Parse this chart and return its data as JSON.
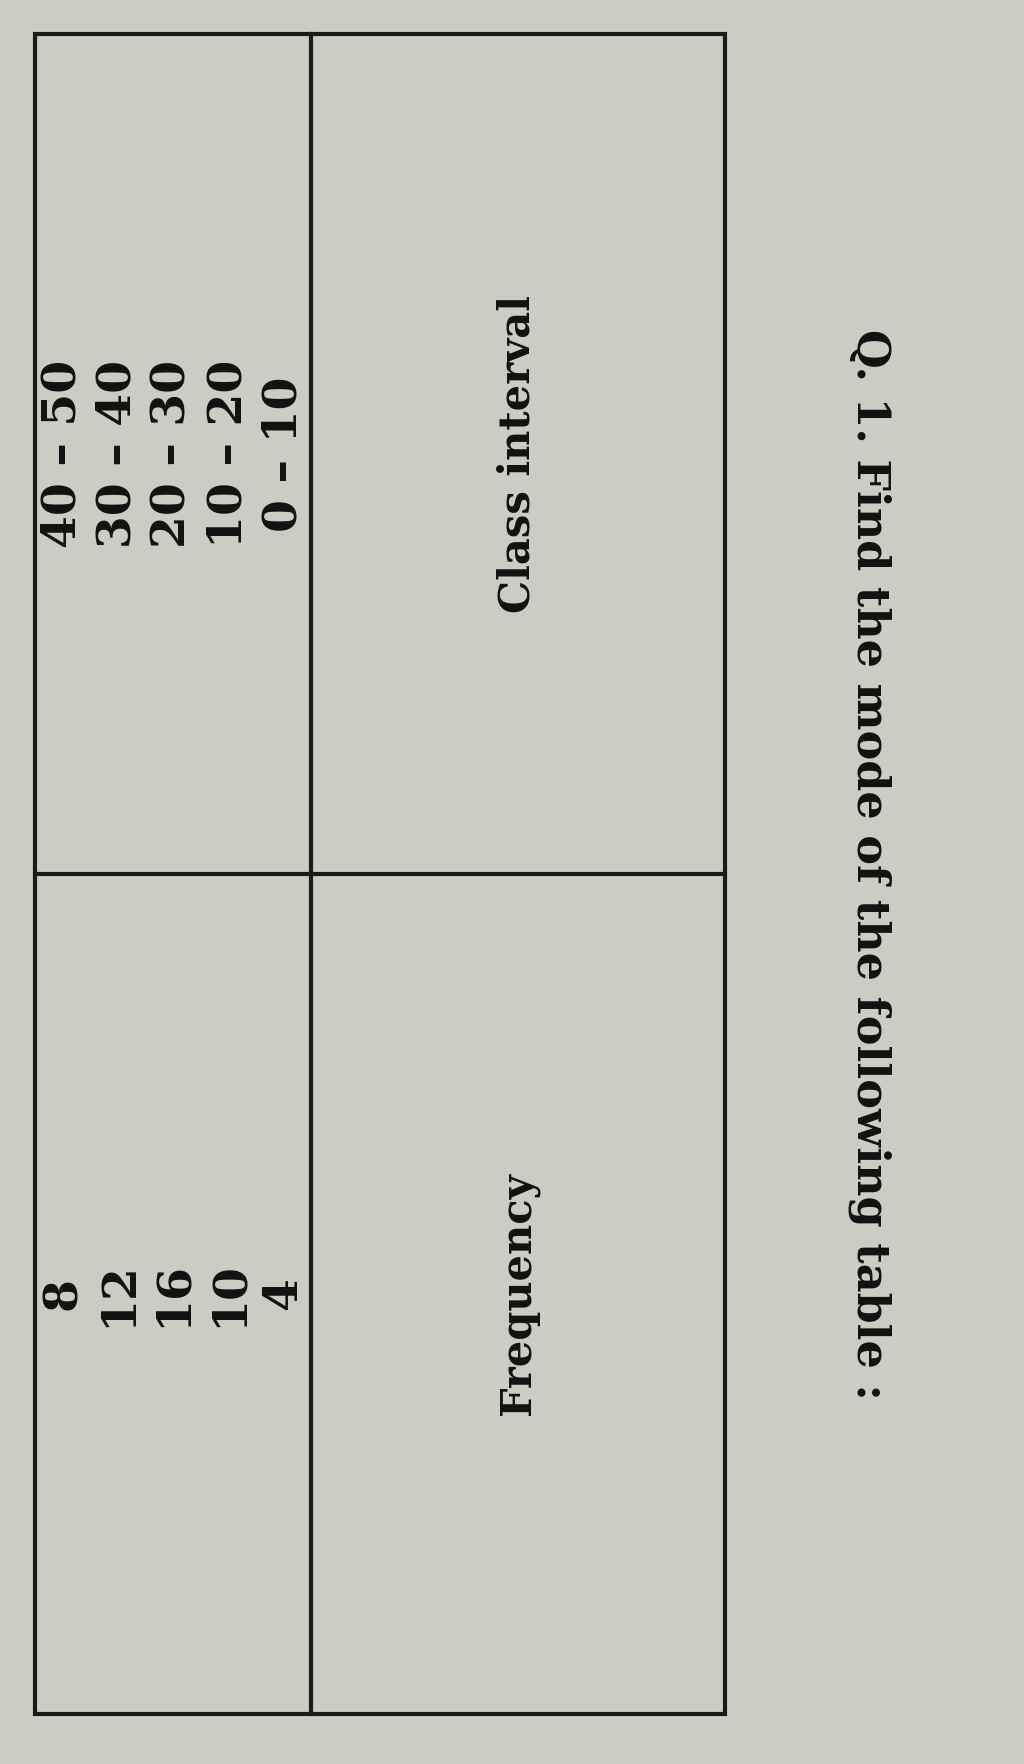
{
  "title": "Q. 1. Find the mode of the following table :",
  "col1_header": "Class interval",
  "col2_header": "Frequency",
  "rows": [
    [
      "0 – 10",
      "4"
    ],
    [
      "10 – 20",
      "10"
    ],
    [
      "20 – 30",
      "16"
    ],
    [
      "30 – 40",
      "12"
    ],
    [
      "40 – 50",
      "8"
    ]
  ],
  "bg_color": "#cccbc4",
  "border_color": "#1a1a1a",
  "title_fontsize": 32,
  "header_fontsize": 30,
  "data_fontsize": 34,
  "text_color": "#111111"
}
